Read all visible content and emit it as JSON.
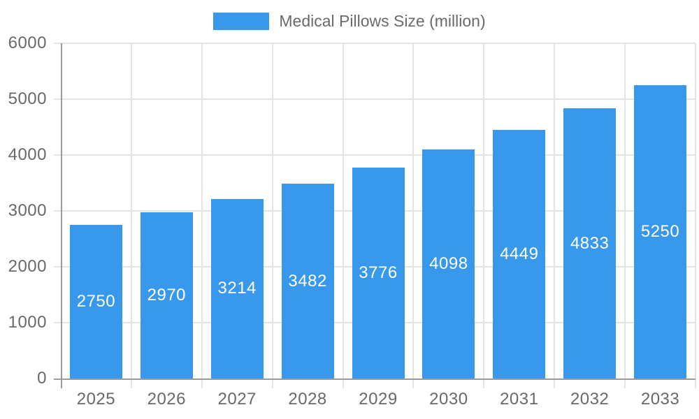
{
  "chart_data": {
    "type": "bar",
    "title": "Medical Pillows Size (million)",
    "categories": [
      "2025",
      "2026",
      "2027",
      "2028",
      "2029",
      "2030",
      "2031",
      "2032",
      "2033"
    ],
    "values": [
      2750,
      2970,
      3214,
      3482,
      3776,
      4098,
      4449,
      4833,
      5250
    ],
    "xlabel": "",
    "ylabel": "",
    "ylim": [
      0,
      6000
    ],
    "yticks": [
      0,
      1000,
      2000,
      3000,
      4000,
      5000,
      6000
    ],
    "grid": true,
    "legend_position": "top-center",
    "value_label_position": "inside-center",
    "colors": {
      "bar": "#3899EC",
      "grid": "#E4E4E4",
      "axis": "#9B9B9B",
      "tick_label": "#696969",
      "legend_text": "#6A6A6A",
      "value_label": "#FFFFFF",
      "background": "#FFFFFF"
    }
  }
}
